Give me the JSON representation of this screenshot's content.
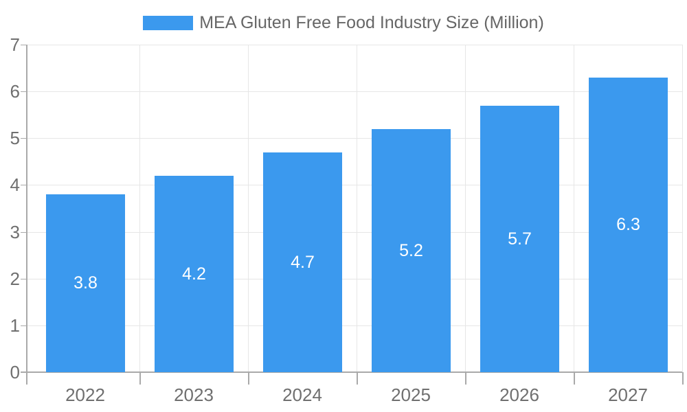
{
  "chart_data": {
    "type": "bar",
    "title": "MEA Gluten Free Food Industry Size (Million)",
    "categories": [
      "2022",
      "2023",
      "2024",
      "2025",
      "2026",
      "2027"
    ],
    "values": [
      3.8,
      4.2,
      4.7,
      5.2,
      5.7,
      6.3
    ],
    "value_labels": [
      "3.8",
      "4.2",
      "4.7",
      "5.2",
      "5.7",
      "6.3"
    ],
    "xlabel": "",
    "ylabel": "",
    "ylim": [
      0,
      7
    ],
    "yticks": [
      0,
      1,
      2,
      3,
      4,
      5,
      6,
      7
    ],
    "grid": true,
    "legend_position": "top-center",
    "value_label_position": "inside-center"
  },
  "colors": {
    "bar": "#3B99EE",
    "gridline": "#E6E6E6",
    "axis": "#A9A9A9",
    "axis_text": "#6F6F6F",
    "legend_text": "#666666",
    "value_label_text": "#FFFFFF",
    "background": "#FFFFFF"
  }
}
